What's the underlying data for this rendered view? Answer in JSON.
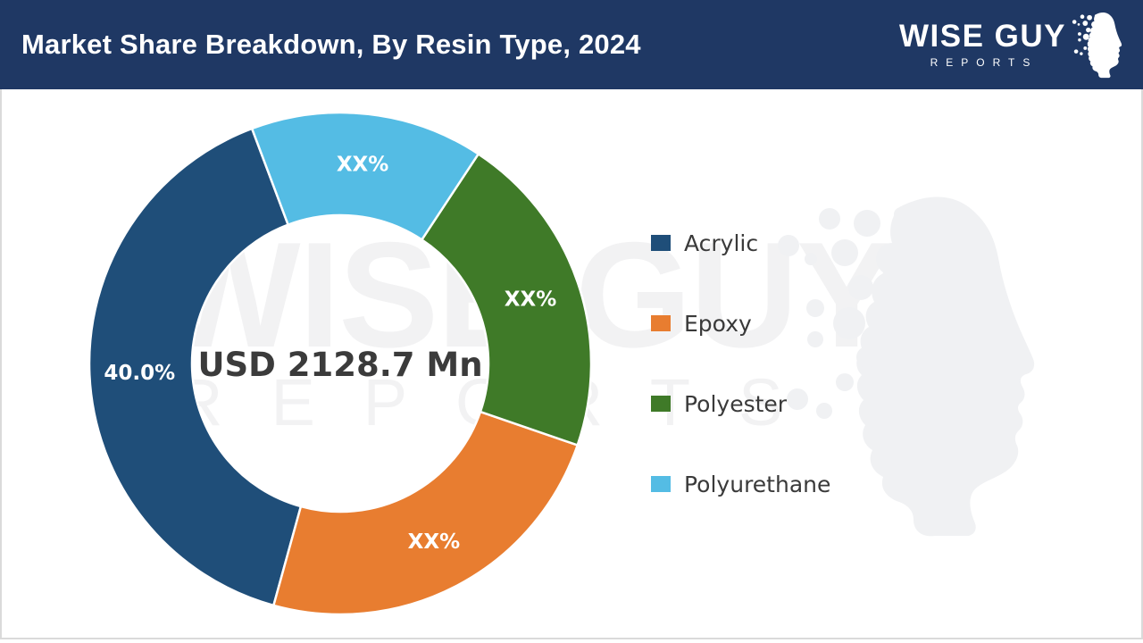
{
  "header": {
    "title": "Market Share Breakdown, By Resin Type, 2024",
    "logo": {
      "line1": "WISE GUY",
      "line2": "REPORTS"
    }
  },
  "watermark": {
    "line1": "WISE GUY",
    "line2": "REPORTS"
  },
  "chart_data": {
    "type": "pie",
    "subtype": "donut",
    "title": "Market Share Breakdown, By Resin Type, 2024",
    "center_label": "USD 2128.7 Mn",
    "start_angle_deg": 110.6,
    "direction": "counterclockwise",
    "legend_position": "right",
    "categories": [
      "Acrylic",
      "Epoxy",
      "Polyester",
      "Polyurethane"
    ],
    "values": [
      40.0,
      24.0,
      21.0,
      15.0
    ],
    "segments": [
      {
        "name": "Acrylic",
        "value_pct": 40.0,
        "display_label": "40.0%",
        "color": "#1F4E79"
      },
      {
        "name": "Epoxy",
        "value_pct": 24.0,
        "display_label": "XX%",
        "color": "#E87D30"
      },
      {
        "name": "Polyester",
        "value_pct": 21.0,
        "display_label": "XX%",
        "color": "#3F7A28"
      },
      {
        "name": "Polyurethane",
        "value_pct": 15.0,
        "display_label": "XX%",
        "color": "#54BCE4"
      }
    ]
  },
  "colors": {
    "header_bg": "#1F3864",
    "center_text": "#3B3B3B",
    "legend_text": "#3A3A3A",
    "watermark": "#F2F2F3",
    "frame_border": "#DADADA"
  }
}
